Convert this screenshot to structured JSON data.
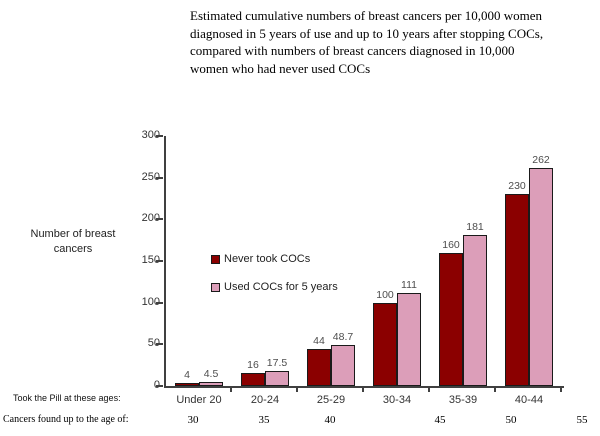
{
  "title": {
    "lines": [
      "Estimated cumulative numbers of breast cancers per 10,000 women",
      "diagnosed in 5 years of use and up to 10 years after stopping COCs,",
      "compared with numbers of breast cancers diagnosed in 10,000",
      "women who had never used COCs"
    ]
  },
  "chart_data": {
    "type": "bar",
    "title": "Estimated cumulative numbers of breast cancers per 10,000 women diagnosed in 5 years of use and up to 10 years after stopping COCs, compared with numbers of breast cancers diagnosed in 10,000 women who had never used COCs",
    "categories": [
      "Under 20",
      "20-24",
      "25-29",
      "30-34",
      "35-39",
      "40-44"
    ],
    "series": [
      {
        "name": "Never took COCs",
        "color": "#8B0000",
        "border": "#1a1a1a",
        "values": [
          4,
          16,
          44,
          100,
          160,
          230
        ]
      },
      {
        "name": "Used COCs for 5 years",
        "color": "#DC9EB9",
        "border": "#1a1a1a",
        "values": [
          4.5,
          17.5,
          48.7,
          111,
          181,
          262
        ]
      }
    ],
    "ylabel": "Number of breast cancers",
    "xlabel": "",
    "ylim": [
      0,
      300
    ],
    "yticks": [
      0,
      50,
      100,
      150,
      200,
      250,
      300
    ],
    "grid": false,
    "legend_position": "inside-left-middle",
    "value_labels_shown": true
  },
  "footer": {
    "pill_ages_label": "Took the Pill at these ages:",
    "cancers_age_label": "Cancers found up to the age of:",
    "cancer_found_ages": [
      "30",
      "35",
      "40",
      "45",
      "50",
      "55"
    ]
  }
}
